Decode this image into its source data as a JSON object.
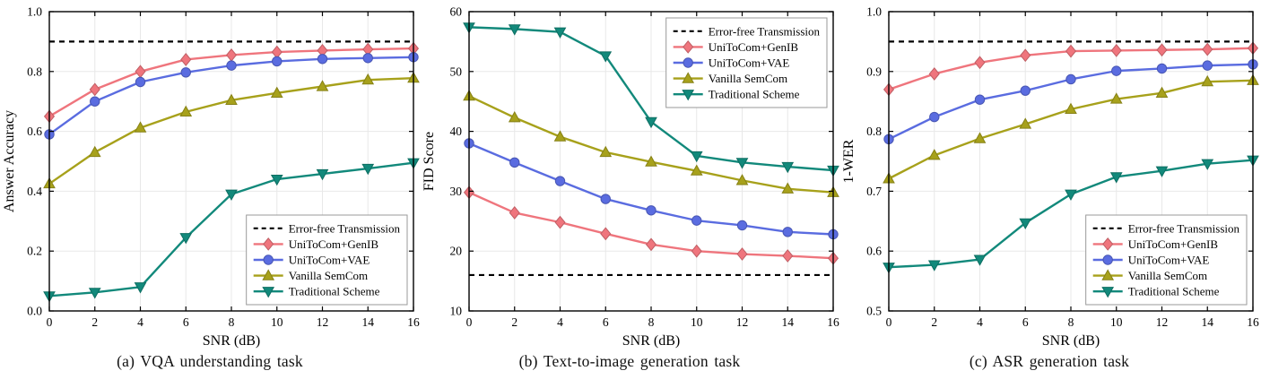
{
  "figure_title": "",
  "palette": {
    "genib": "#ef757d",
    "vae": "#5a6ce0",
    "vanilla": "#a7a11b",
    "traditional": "#12897b",
    "reference": "#000000",
    "grid": "#e8e8e8",
    "legend_border": "#9a9a9a",
    "axis": "#000000"
  },
  "chart_data": [
    {
      "type": "line",
      "caption": "(a) VQA understanding task",
      "xlabel": "SNR (dB)",
      "ylabel": "Answer Accuracy",
      "x": [
        0,
        2,
        4,
        6,
        8,
        10,
        12,
        14,
        16
      ],
      "xticks": [
        0,
        2,
        4,
        6,
        8,
        10,
        12,
        14,
        16
      ],
      "xlim": [
        0,
        16
      ],
      "ylim": [
        0.0,
        1.0
      ],
      "yticks": [
        0.0,
        0.2,
        0.4,
        0.6,
        0.8,
        1.0
      ],
      "ytick_decimals": 1,
      "grid": true,
      "legend_pos": "lower-right",
      "reference": {
        "label": "Error-free Transmission",
        "value": 0.9
      },
      "series": [
        {
          "name": "UniToCom+GenIB",
          "marker": "diamond",
          "color_key": "genib",
          "values": [
            0.65,
            0.74,
            0.8,
            0.84,
            0.855,
            0.865,
            0.87,
            0.874,
            0.877
          ]
        },
        {
          "name": "UniToCom+VAE",
          "marker": "circle",
          "color_key": "vae",
          "values": [
            0.59,
            0.7,
            0.765,
            0.797,
            0.82,
            0.834,
            0.842,
            0.845,
            0.848
          ]
        },
        {
          "name": "Vanilla SemCom",
          "marker": "triangle-up",
          "color_key": "vanilla",
          "values": [
            0.425,
            0.53,
            0.612,
            0.665,
            0.704,
            0.728,
            0.75,
            0.772,
            0.778
          ]
        },
        {
          "name": "Traditional Scheme",
          "marker": "triangle-down",
          "color_key": "traditional",
          "values": [
            0.05,
            0.062,
            0.08,
            0.245,
            0.39,
            0.44,
            0.458,
            0.476,
            0.495
          ]
        }
      ]
    },
    {
      "type": "line",
      "caption": "(b) Text-to-image generation task",
      "xlabel": "SNR (dB)",
      "ylabel": "FID Score",
      "x": [
        0,
        2,
        4,
        6,
        8,
        10,
        12,
        14,
        16
      ],
      "xticks": [
        0,
        2,
        4,
        6,
        8,
        10,
        12,
        14,
        16
      ],
      "xlim": [
        0,
        16
      ],
      "ylim": [
        10,
        60
      ],
      "yticks": [
        10,
        20,
        30,
        40,
        50,
        60
      ],
      "ytick_decimals": 0,
      "grid": true,
      "legend_pos": "upper-right",
      "reference": {
        "label": "Error-free Transmission",
        "value": 16.0
      },
      "series": [
        {
          "name": "UniToCom+GenIB",
          "marker": "diamond",
          "color_key": "genib",
          "values": [
            29.8,
            26.4,
            24.8,
            22.9,
            21.1,
            20.0,
            19.5,
            19.2,
            18.8
          ]
        },
        {
          "name": "UniToCom+VAE",
          "marker": "circle",
          "color_key": "vae",
          "values": [
            38.0,
            34.8,
            31.7,
            28.7,
            26.8,
            25.1,
            24.3,
            23.2,
            22.8
          ]
        },
        {
          "name": "Vanilla SemCom",
          "marker": "triangle-up",
          "color_key": "vanilla",
          "values": [
            45.9,
            42.3,
            39.1,
            36.5,
            34.9,
            33.4,
            31.8,
            30.4,
            29.8
          ]
        },
        {
          "name": "Traditional Scheme",
          "marker": "triangle-down",
          "color_key": "traditional",
          "values": [
            57.4,
            57.1,
            56.6,
            52.6,
            41.6,
            35.9,
            34.8,
            34.1,
            33.5
          ]
        }
      ]
    },
    {
      "type": "line",
      "caption": "(c) ASR generation task",
      "xlabel": "SNR (dB)",
      "ylabel": "1-WER",
      "x": [
        0,
        2,
        4,
        6,
        8,
        10,
        12,
        14,
        16
      ],
      "xticks": [
        0,
        2,
        4,
        6,
        8,
        10,
        12,
        14,
        16
      ],
      "xlim": [
        0,
        16
      ],
      "ylim": [
        0.5,
        1.0
      ],
      "yticks": [
        0.5,
        0.6,
        0.7,
        0.8,
        0.9,
        1.0
      ],
      "ytick_decimals": 1,
      "grid": true,
      "legend_pos": "lower-right",
      "reference": {
        "label": "Error-free Transmission",
        "value": 0.95
      },
      "series": [
        {
          "name": "UniToCom+GenIB",
          "marker": "diamond",
          "color_key": "genib",
          "values": [
            0.87,
            0.896,
            0.915,
            0.927,
            0.934,
            0.935,
            0.936,
            0.937,
            0.939
          ]
        },
        {
          "name": "UniToCom+VAE",
          "marker": "circle",
          "color_key": "vae",
          "values": [
            0.787,
            0.824,
            0.853,
            0.868,
            0.887,
            0.901,
            0.905,
            0.91,
            0.912
          ]
        },
        {
          "name": "Vanilla SemCom",
          "marker": "triangle-up",
          "color_key": "vanilla",
          "values": [
            0.721,
            0.76,
            0.788,
            0.812,
            0.837,
            0.854,
            0.864,
            0.883,
            0.885
          ]
        },
        {
          "name": "Traditional Scheme",
          "marker": "triangle-down",
          "color_key": "traditional",
          "values": [
            0.573,
            0.577,
            0.586,
            0.647,
            0.695,
            0.724,
            0.734,
            0.746,
            0.752
          ]
        }
      ]
    }
  ]
}
